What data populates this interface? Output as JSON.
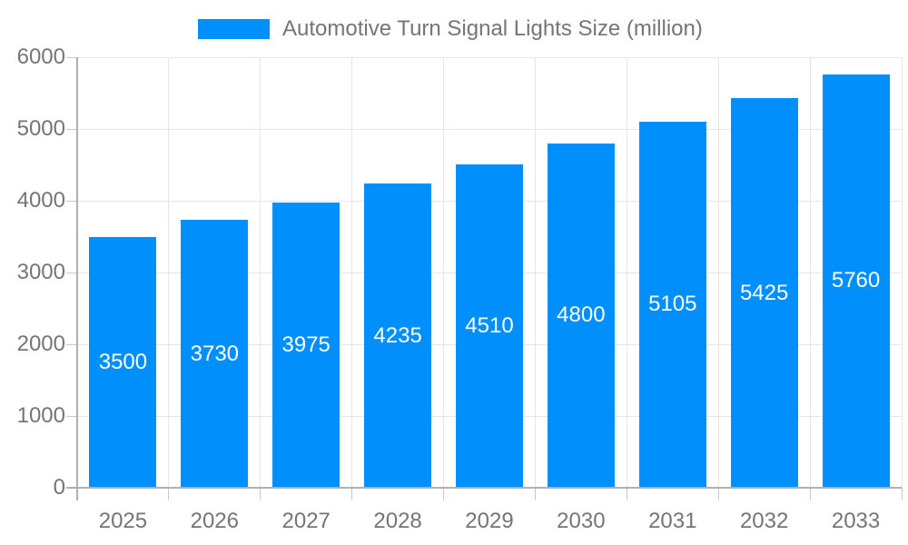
{
  "legend": {
    "label": "Automotive Turn Signal Lights Size (million)"
  },
  "chart_data": {
    "type": "bar",
    "title": "Automotive Turn Signal Lights Size (million)",
    "series_name": "Automotive Turn Signal Lights Size (million)",
    "categories": [
      "2025",
      "2026",
      "2027",
      "2028",
      "2029",
      "2030",
      "2031",
      "2032",
      "2033"
    ],
    "values": [
      3500,
      3730,
      3975,
      4235,
      4510,
      4800,
      5105,
      5425,
      5760
    ],
    "value_labels": [
      "3500",
      "3730",
      "3975",
      "4235",
      "4510",
      "4800",
      "5105",
      "5425",
      "5760"
    ],
    "xlabel": "",
    "ylabel": "",
    "ylim": [
      0,
      6000
    ],
    "y_ticks": [
      0,
      1000,
      2000,
      3000,
      4000,
      5000,
      6000
    ],
    "y_tick_labels": [
      "0",
      "1000",
      "2000",
      "3000",
      "4000",
      "5000",
      "6000"
    ],
    "grid": "both",
    "legend_position": "top",
    "colors": {
      "bar": "#008FFB",
      "bar_value_text": "#ffffff",
      "axis_text": "#757575",
      "grid_line": "#e6e6e6",
      "tick_mark": "#c9c9c9",
      "axis_line": "#b0b0b0",
      "background": "#ffffff"
    }
  }
}
